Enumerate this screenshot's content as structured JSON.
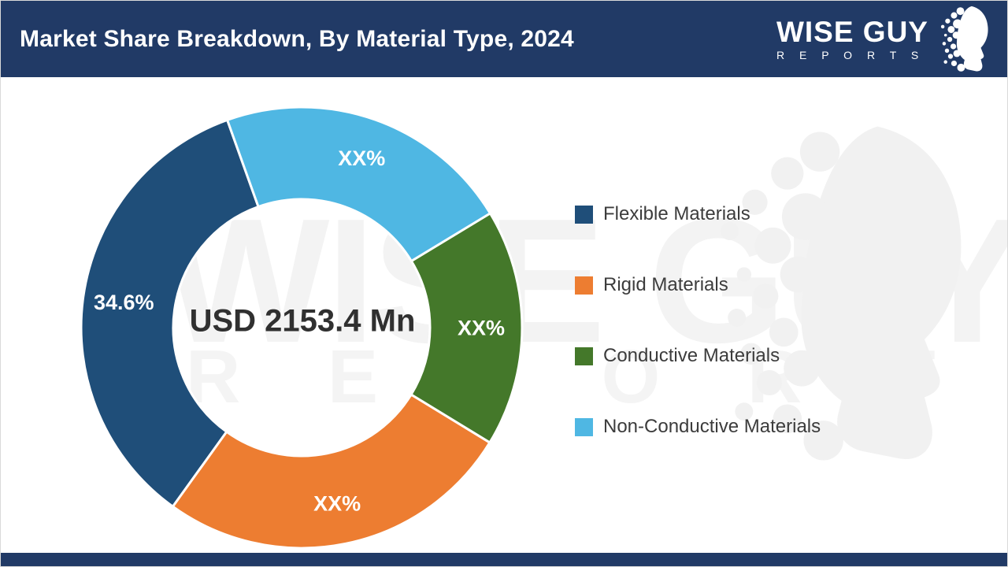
{
  "header": {
    "title": "Market Share Breakdown, By Material Type, 2024",
    "logo": {
      "line1": "WISE GUY",
      "line2": "R E P O R T S"
    }
  },
  "watermark": {
    "line1": "WISE GUY",
    "line2": "R E P O R T S"
  },
  "chart_data": {
    "type": "pie",
    "subtype": "donut",
    "title": "Market Share Breakdown, By Material Type, 2024",
    "center_label": "USD 2153.4 Mn",
    "start_angle_deg": 109.7,
    "legend_position": "right",
    "slices": [
      {
        "name": "Flexible Materials",
        "value": 34.6,
        "label": "34.6%",
        "color": "#1f4e79"
      },
      {
        "name": "Rigid Materials",
        "value": 26.2,
        "label": "XX%",
        "color": "#ed7d31"
      },
      {
        "name": "Conductive Materials",
        "value": 17.4,
        "label": "XX%",
        "color": "#44782a"
      },
      {
        "name": "Non-Conductive Materials",
        "value": 21.8,
        "label": "XX%",
        "color": "#4fb7e3"
      }
    ],
    "colors": {
      "header_bar": "#213a66",
      "footer_bar": "#213a66",
      "center_text": "#303030",
      "legend_text": "#3c3c3c",
      "watermark": "#f3f3f3"
    }
  }
}
